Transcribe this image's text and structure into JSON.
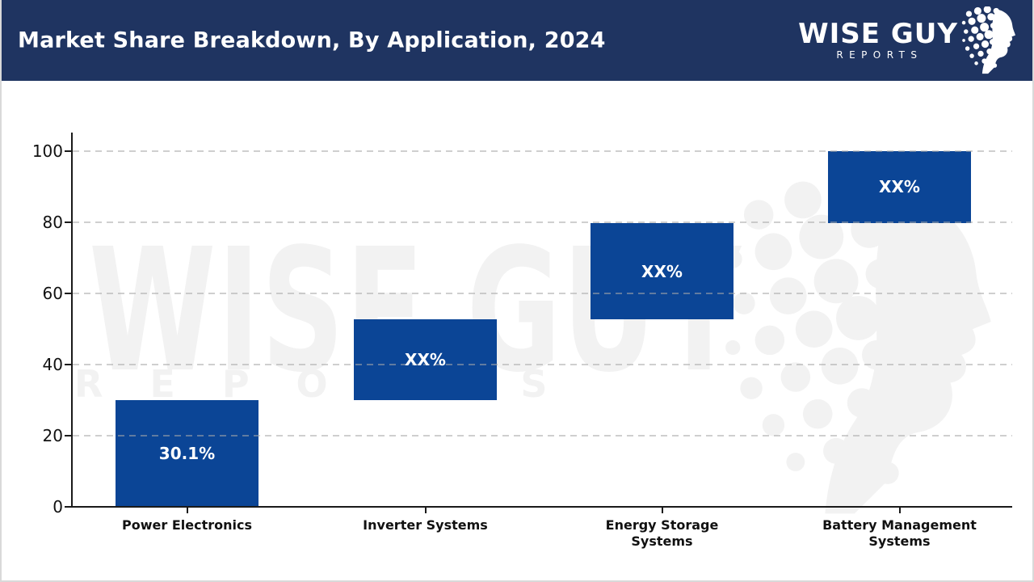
{
  "header": {
    "title": "Market Share Breakdown, By Application, 2024",
    "bg_color": "#1F3461",
    "logo": {
      "line1": "WISE GUY",
      "line2": "REPORTS"
    }
  },
  "watermark": {
    "line1": "WISE GUY",
    "line2": "REPORTS"
  },
  "chart_data": {
    "type": "bar",
    "subtype": "waterfall",
    "title": "Market Share Breakdown, By Application, 2024",
    "categories": [
      "Power Electronics",
      "Inverter Systems",
      "Energy Storage Systems",
      "Battery Management Systems"
    ],
    "categories_display": [
      "Power Electronics",
      "Inverter Systems",
      "Energy Storage\nSystems",
      "Battery Management\nSystems"
    ],
    "segments": [
      {
        "category": "Power Electronics",
        "start": 0,
        "end": 30.1,
        "label": "30.1%"
      },
      {
        "category": "Inverter Systems",
        "start": 30.1,
        "end": 52.7,
        "label": "XX%"
      },
      {
        "category": "Energy Storage Systems",
        "start": 52.7,
        "end": 79.8,
        "label": "XX%"
      },
      {
        "category": "Battery Management Systems",
        "start": 79.8,
        "end": 100,
        "label": "XX%"
      }
    ],
    "yticks": [
      0,
      20,
      40,
      60,
      80,
      100
    ],
    "ylim": [
      0,
      105
    ],
    "xlabel": "",
    "ylabel": "",
    "grid": "dashed horizontal, drawn over bars",
    "legend": "none",
    "bar_color": "#0B4596",
    "bar_label_color": "#ffffff",
    "axis_color": "#1a1a1a"
  }
}
